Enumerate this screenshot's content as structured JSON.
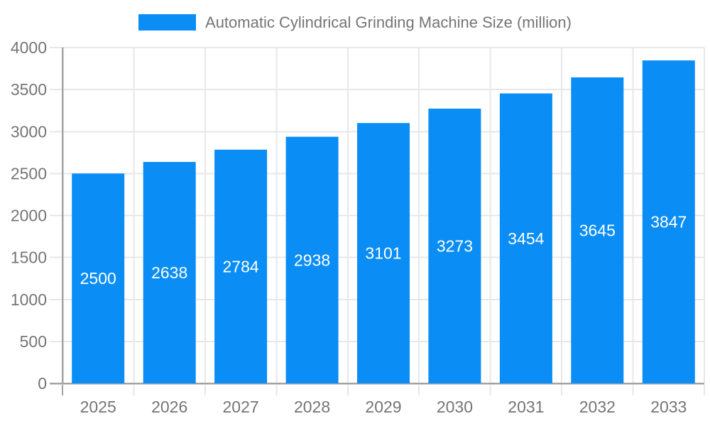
{
  "chart_data": {
    "type": "bar",
    "title": "Automatic Cylindrical Grinding Machine Size (million)",
    "legend": {
      "label": "Automatic Cylindrical Grinding Machine Size (million)",
      "position": "top"
    },
    "categories": [
      "2025",
      "2026",
      "2027",
      "2028",
      "2029",
      "2030",
      "2031",
      "2032",
      "2033"
    ],
    "series": [
      {
        "name": "Automatic Cylindrical Grinding Machine Size (million)",
        "values": [
          2500,
          2638,
          2784,
          2938,
          3101,
          3273,
          3454,
          3645,
          3847
        ]
      }
    ],
    "xlabel": "",
    "ylabel": "",
    "ylim": [
      0,
      4000
    ],
    "ytick_step": 500,
    "ytick_labels": [
      "0",
      "500",
      "1000",
      "1500",
      "2000",
      "2500",
      "3000",
      "3500",
      "4000"
    ],
    "grid": true,
    "value_label_position": "inside-center",
    "colors": {
      "bar": "#0a8df5",
      "axis_text": "#757575",
      "value_text": "#ffffff",
      "gridline": "#e7e7e7",
      "axis_line": "#a3a3a3",
      "background": "#ffffff"
    }
  }
}
